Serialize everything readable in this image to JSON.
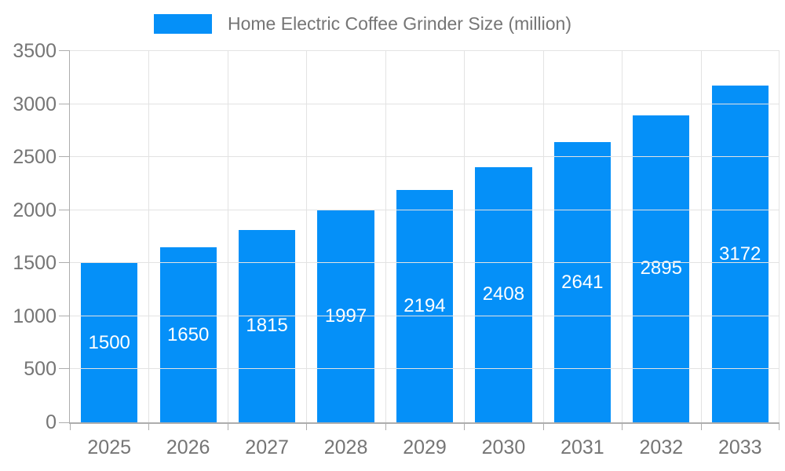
{
  "chart_data": {
    "type": "bar",
    "title": "Home Electric Coffee Grinder Size (million)",
    "legend_position": "top",
    "categories": [
      "2025",
      "2026",
      "2027",
      "2028",
      "2029",
      "2030",
      "2031",
      "2032",
      "2033"
    ],
    "values": [
      1500,
      1650,
      1815,
      1997,
      2194,
      2408,
      2641,
      2895,
      3172
    ],
    "xlabel": "",
    "ylabel": "",
    "ylim": [
      0,
      3500
    ],
    "yticks": [
      0,
      500,
      1000,
      1500,
      2000,
      2500,
      3000,
      3500
    ],
    "grid": true,
    "colors": {
      "bar": "#0590f8",
      "value_label": "#ffffff",
      "axis_text": "#757575",
      "grid_line": "#e3e3e3",
      "axis_line": "#adadad"
    }
  }
}
